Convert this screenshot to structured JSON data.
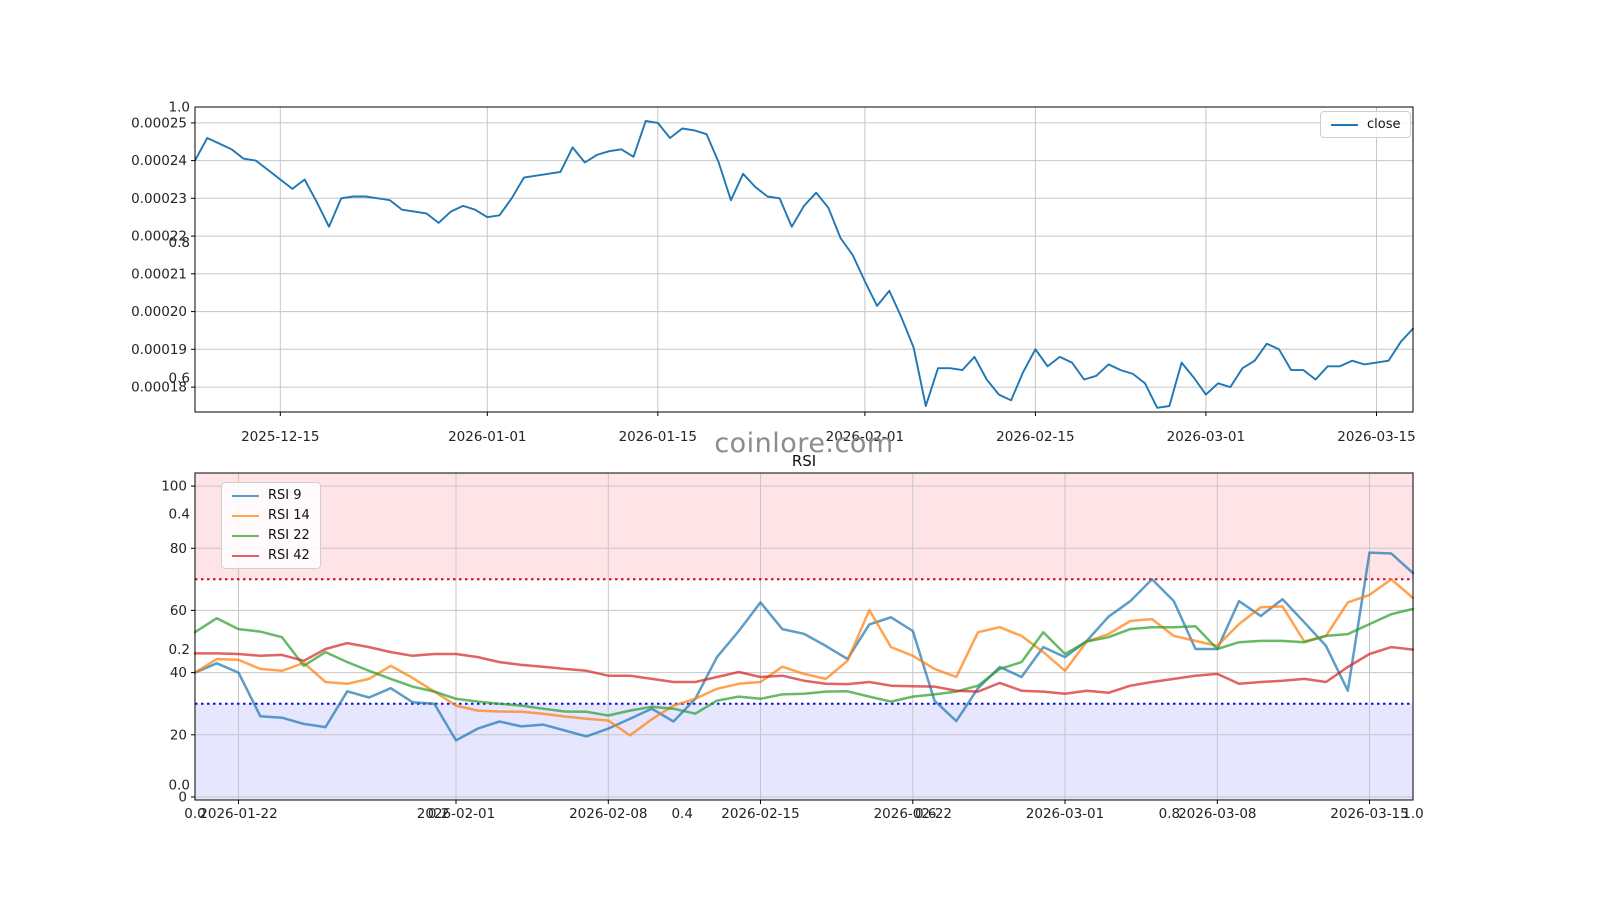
{
  "figure": {
    "watermark": "coinlore.com",
    "background": "#ffffff",
    "grid_color": "#c6c6c6",
    "spine_color": "#000000"
  },
  "stray_axis": {
    "left": [
      {
        "label": "1.0",
        "f": 0.0
      },
      {
        "label": "0.8",
        "f": 0.2
      },
      {
        "label": "0.6",
        "f": 0.4
      },
      {
        "label": "0.4",
        "f": 0.6
      },
      {
        "label": "0.2",
        "f": 0.8
      },
      {
        "label": "0.0",
        "f": 1.0
      }
    ],
    "bottom": [
      {
        "label": "0.0",
        "f": 0.0
      },
      {
        "label": "0.2",
        "f": 0.2
      },
      {
        "label": "0.4",
        "f": 0.4
      },
      {
        "label": "0.6",
        "f": 0.6
      },
      {
        "label": "0.8",
        "f": 0.8
      },
      {
        "label": "1.0",
        "f": 1.0
      }
    ]
  },
  "chart_data": [
    {
      "type": "line",
      "title": "",
      "legend_position": "upper right",
      "x_range": [
        "2025-12-08",
        "2026-03-18"
      ],
      "ylim": [
        0.0001734,
        0.0002542
      ],
      "grid": true,
      "xticks": [
        {
          "label": "2025-12-15",
          "f": 0.07
        },
        {
          "label": "2026-01-01",
          "f": 0.24
        },
        {
          "label": "2026-01-15",
          "f": 0.38
        },
        {
          "label": "2026-02-01",
          "f": 0.55
        },
        {
          "label": "2026-02-15",
          "f": 0.69
        },
        {
          "label": "2026-03-01",
          "f": 0.83
        },
        {
          "label": "2026-03-15",
          "f": 0.97
        }
      ],
      "yticks": [
        {
          "label": "0.00025",
          "v": 0.00025
        },
        {
          "label": "0.00024",
          "v": 0.00024
        },
        {
          "label": "0.00023",
          "v": 0.00023
        },
        {
          "label": "0.00022",
          "v": 0.00022
        },
        {
          "label": "0.00021",
          "v": 0.00021
        },
        {
          "label": "0.00020",
          "v": 0.0002
        },
        {
          "label": "0.00019",
          "v": 0.00019
        },
        {
          "label": "0.00018",
          "v": 0.00018
        }
      ],
      "series": [
        {
          "name": "close",
          "color": "#1f77b4",
          "width": 1.9,
          "values": [
            0.00024,
            0.000246,
            0.0002445,
            0.000243,
            0.0002405,
            0.00024,
            0.0002375,
            0.000235,
            0.0002325,
            0.000235,
            0.000229,
            0.0002225,
            0.00023,
            0.0002305,
            0.0002305,
            0.00023,
            0.0002295,
            0.000227,
            0.0002265,
            0.000226,
            0.0002235,
            0.0002265,
            0.000228,
            0.000227,
            0.000225,
            0.0002255,
            0.00023,
            0.0002355,
            0.000236,
            0.0002365,
            0.000237,
            0.0002435,
            0.0002395,
            0.0002415,
            0.0002425,
            0.000243,
            0.000241,
            0.0002505,
            0.00025,
            0.000246,
            0.0002485,
            0.000248,
            0.000247,
            0.0002395,
            0.0002295,
            0.0002365,
            0.000233,
            0.0002305,
            0.00023,
            0.0002225,
            0.000228,
            0.0002315,
            0.0002275,
            0.0002195,
            0.000215,
            0.000208,
            0.0002015,
            0.0002055,
            0.0001985,
            0.0001905,
            0.000175,
            0.000185,
            0.000185,
            0.0001845,
            0.000188,
            0.000182,
            0.000178,
            0.0001765,
            0.000184,
            0.00019,
            0.0001855,
            0.000188,
            0.0001865,
            0.000182,
            0.000183,
            0.000186,
            0.0001845,
            0.0001835,
            0.000181,
            0.0001745,
            0.000175,
            0.0001865,
            0.0001825,
            0.000178,
            0.000181,
            0.00018,
            0.000185,
            0.000187,
            0.0001915,
            0.00019,
            0.0001845,
            0.0001845,
            0.000182,
            0.0001855,
            0.0001855,
            0.000187,
            0.000186,
            0.0001865,
            0.000187,
            0.000192,
            0.0001955
          ]
        }
      ]
    },
    {
      "type": "line",
      "title": "RSI",
      "legend_position": "upper left",
      "x_range": [
        "2026-01-20",
        "2026-03-17"
      ],
      "ylim": [
        0,
        100
      ],
      "grid": true,
      "overbought_level": 70,
      "oversold_level": 30,
      "hlines": [
        {
          "v": 70,
          "color": "#dd0011",
          "style": "dotted"
        },
        {
          "v": 30,
          "color": "#0011dd",
          "style": "dotted"
        }
      ],
      "bands": [
        {
          "name": "overbought-band",
          "from": 70,
          "to": 100,
          "extend": "top",
          "color": "rgba(255,30,55,0.12)"
        },
        {
          "name": "oversold-band",
          "from": 0,
          "to": 30,
          "extend": "bottom",
          "color": "rgba(65,65,255,0.13)"
        }
      ],
      "xticks": [
        {
          "label": "2026-01-22",
          "f": 0.0357
        },
        {
          "label": "2026-02-01",
          "f": 0.2143
        },
        {
          "label": "2026-02-08",
          "f": 0.3393
        },
        {
          "label": "2026-02-15",
          "f": 0.4643
        },
        {
          "label": "2026-02-22",
          "f": 0.5893
        },
        {
          "label": "2026-03-01",
          "f": 0.7143
        },
        {
          "label": "2026-03-08",
          "f": 0.8393
        },
        {
          "label": "2026-03-15",
          "f": 0.9643
        }
      ],
      "yticks": [
        {
          "label": "100",
          "v": 100
        },
        {
          "label": "80",
          "v": 80
        },
        {
          "label": "60",
          "v": 60
        },
        {
          "label": "40",
          "v": 40
        },
        {
          "label": "20",
          "v": 20
        },
        {
          "label": "0",
          "v": 0
        }
      ],
      "series": [
        {
          "name": "RSI 9",
          "color": "rgba(31,119,180,0.72)",
          "width": 2.5,
          "values": [
            40,
            43,
            40,
            26,
            25.5,
            23.5,
            22.5,
            34,
            32,
            35,
            30.5,
            30,
            18.2,
            22,
            24.3,
            22.7,
            23.3,
            21.4,
            19.5,
            22,
            25.2,
            28.4,
            24.3,
            31.6,
            45,
            53.4,
            62.6,
            54,
            52.5,
            48.6,
            44.4,
            55.5,
            57.8,
            53.4,
            31,
            24.4,
            35,
            41.8,
            38.6,
            48.2,
            45,
            50.2,
            58,
            63,
            70,
            63,
            47.6,
            47.6,
            63,
            58.2,
            63.6,
            56.2,
            48.6,
            34.2,
            78.6,
            78.3,
            72
          ]
        },
        {
          "name": "RSI 14",
          "color": "rgba(255,127,14,0.72)",
          "width": 2.5,
          "values": [
            40,
            44.4,
            44.1,
            41.2,
            40.6,
            43.1,
            37,
            36.4,
            38,
            42.2,
            38.3,
            33.9,
            29.4,
            27.8,
            27.5,
            27.4,
            26.8,
            25.9,
            25.2,
            24.6,
            19.8,
            25,
            29.4,
            31.6,
            34.8,
            36.4,
            37,
            41.9,
            39.6,
            38,
            43.8,
            60.1,
            48.2,
            45.4,
            41.2,
            38.6,
            53,
            54.6,
            51.8,
            46.6,
            40.6,
            50,
            52.4,
            56.6,
            57.2,
            51.8,
            50.2,
            48.6,
            55.6,
            61,
            61.3,
            50,
            51.8,
            62.6,
            65,
            70,
            64
          ]
        },
        {
          "name": "RSI 22",
          "color": "rgba(44,160,44,0.72)",
          "width": 2.5,
          "values": [
            53,
            57.5,
            54,
            53.2,
            51.4,
            42.2,
            46.6,
            43.4,
            40.6,
            38,
            35.5,
            33.9,
            31.6,
            30.7,
            30,
            29.4,
            28.4,
            27.5,
            27.4,
            26.2,
            27.8,
            29,
            28.4,
            26.8,
            31,
            32.3,
            31.6,
            33,
            33.2,
            33.9,
            34,
            32.3,
            30.7,
            32.3,
            33,
            33.9,
            35.8,
            41.2,
            43.4,
            53,
            46,
            50,
            51.4,
            54,
            54.6,
            54.6,
            54.9,
            47.6,
            49.8,
            50.2,
            50.2,
            49.8,
            51.8,
            52.4,
            55.6,
            58.8,
            60.5
          ]
        },
        {
          "name": "RSI 42",
          "color": "rgba(214,39,40,0.72)",
          "width": 2.5,
          "values": [
            46.2,
            46.2,
            46,
            45.4,
            45.7,
            43.8,
            47.6,
            49.5,
            48.2,
            46.6,
            45.4,
            46,
            46,
            45,
            43.4,
            42.5,
            41.9,
            41.2,
            40.6,
            39,
            39,
            38,
            37,
            37,
            38.6,
            40.2,
            38.6,
            39,
            37.4,
            36.4,
            36.3,
            37,
            35.8,
            35.6,
            35.5,
            34.2,
            33.9,
            36.7,
            34.2,
            33.9,
            33.2,
            34.2,
            33.5,
            35.8,
            37,
            38,
            39,
            39.6,
            36.4,
            37,
            37.4,
            38,
            37,
            41.8,
            46,
            48.2,
            47.4
          ]
        }
      ]
    }
  ]
}
